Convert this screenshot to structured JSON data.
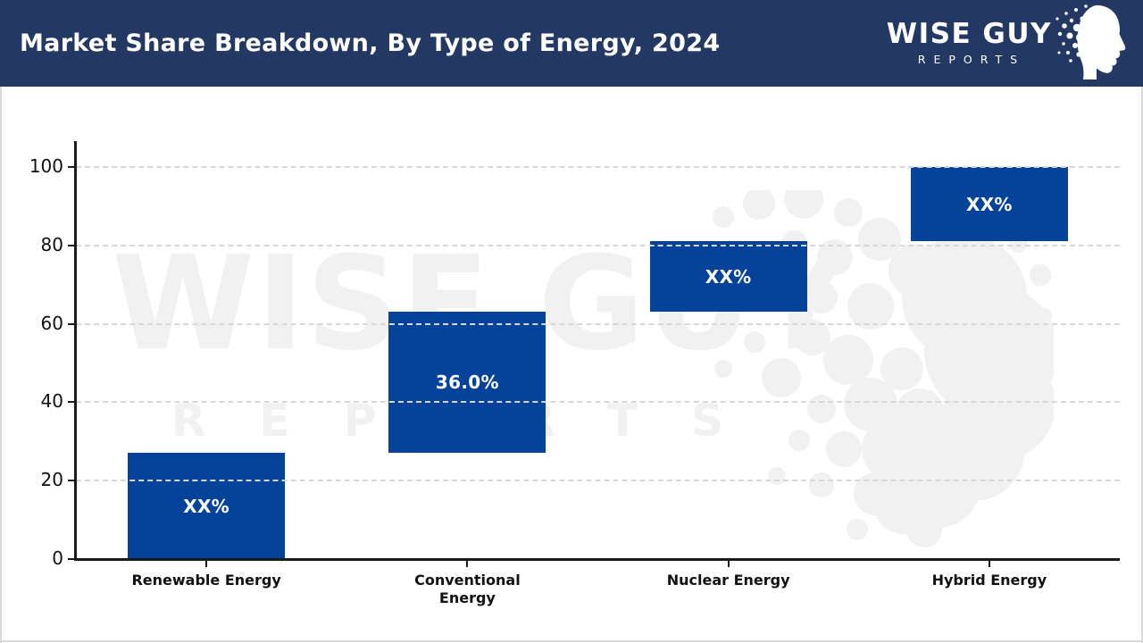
{
  "header": {
    "title": "Market Share Breakdown, By Type of Energy, 2024",
    "logo": {
      "line1": "WISE GUY",
      "line2": "REPORTS"
    }
  },
  "watermark": {
    "line1": "WISE GUY",
    "line2": "REPORTS"
  },
  "colors": {
    "header_bg": "#233862",
    "bar": "#05439b",
    "bar_label": "#ffffff",
    "gridline": "#d8d8d8",
    "axis": "#1a1a1a",
    "watermark": "#f1f1f2"
  },
  "chart_data": {
    "type": "bar",
    "subtype": "waterfall",
    "title": "Market Share Breakdown, By Type of Energy, 2024",
    "xlabel": "",
    "ylabel": "",
    "ylim": [
      0,
      100
    ],
    "yticks": [
      0,
      20,
      40,
      60,
      80,
      100
    ],
    "grid": {
      "horizontal": true,
      "style": "dashed"
    },
    "legend": "none",
    "categories": [
      "Renewable Energy",
      "Conventional Energy",
      "Nuclear Energy",
      "Hybrid Energy"
    ],
    "category_tick_lines": [
      [
        "Renewable Energy"
      ],
      [
        "Conventional",
        "Energy"
      ],
      [
        "Nuclear Energy"
      ],
      [
        "Hybrid Energy"
      ]
    ],
    "segments": [
      {
        "category": "Renewable Energy",
        "start": 0,
        "end": 27,
        "value": 27,
        "label": "XX%"
      },
      {
        "category": "Conventional Energy",
        "start": 27,
        "end": 63,
        "value": 36,
        "label": "36.0%"
      },
      {
        "category": "Nuclear Energy",
        "start": 63,
        "end": 81,
        "value": 18,
        "label": "XX%"
      },
      {
        "category": "Hybrid Energy",
        "start": 81,
        "end": 100,
        "value": 19,
        "label": "XX%"
      }
    ]
  }
}
